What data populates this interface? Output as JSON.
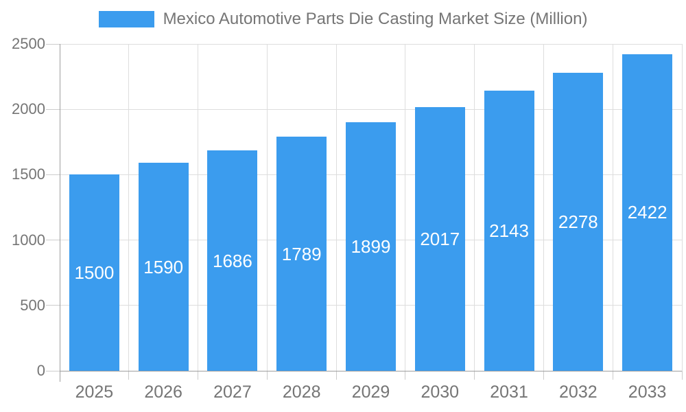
{
  "legend": {
    "label": "Mexico Automotive Parts Die Casting Market Size (Million)"
  },
  "chart_data": {
    "type": "bar",
    "title": "Mexico Automotive Parts Die Casting Market Size (Million)",
    "categories": [
      "2025",
      "2026",
      "2027",
      "2028",
      "2029",
      "2030",
      "2031",
      "2032",
      "2033"
    ],
    "values": [
      1500,
      1590,
      1686,
      1789,
      1899,
      2017,
      2143,
      2278,
      2422
    ],
    "series_name": "Mexico Automotive Parts Die Casting Market Size (Million)",
    "xlabel": "",
    "ylabel": "",
    "ylim": [
      0,
      2500
    ],
    "yticks": [
      0,
      500,
      1000,
      1500,
      2000,
      2500
    ],
    "grid": true,
    "legend_position": "top-center",
    "value_labels": "inside-center",
    "bar_color": "#3B9CEE",
    "value_label_color": "#FFFFFF",
    "axis_text_color": "#757575",
    "grid_color": "#DDDDDD",
    "tick_color": "#CCCCCC",
    "axis_line_color": "#9E9E9E",
    "background_color": "#FFFFFF"
  }
}
